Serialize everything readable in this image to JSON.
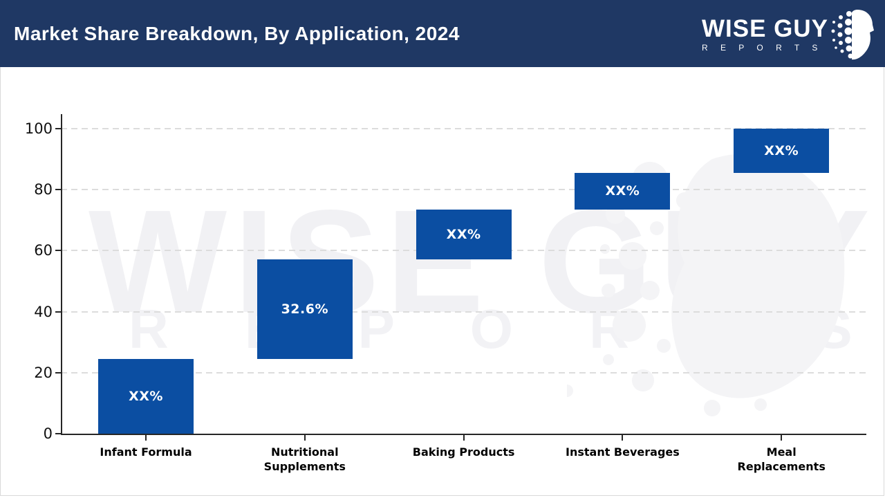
{
  "header": {
    "title": "Market Share Breakdown, By Application, 2024",
    "logo": {
      "line1": "WISE GUY",
      "line2": "R E P O R T S"
    }
  },
  "watermark": {
    "line1": "WISE GUY",
    "line2": "R E P O R T S"
  },
  "colors": {
    "header_bg": "#1f3864",
    "bar": "#0b4ea2",
    "bar_label": "#ffffff",
    "gridline": "#dcdcdc",
    "axis": "#262626",
    "watermark": "#f1f1f4",
    "frame_border": "#d9d9d9"
  },
  "chart_data": {
    "type": "bar",
    "subtype": "floating-waterfall",
    "title": "Market Share Breakdown, By Application, 2024",
    "xlabel": "",
    "ylabel": "",
    "ylim": [
      0,
      104
    ],
    "y_ticks": [
      0,
      20,
      40,
      60,
      80,
      100
    ],
    "grid": "horizontal-dashed",
    "legend": "none",
    "categories": [
      "Infant Formula",
      "Nutritional Supplements",
      "Baking Products",
      "Instant Beverages",
      "Meal Replacements"
    ],
    "segments": [
      {
        "category": "Infant Formula",
        "start": 0,
        "end": 24.5,
        "label": "XX%"
      },
      {
        "category": "Nutritional Supplements",
        "start": 24.5,
        "end": 57.1,
        "label": "32.6%",
        "value": 32.6
      },
      {
        "category": "Baking Products",
        "start": 57.1,
        "end": 73.5,
        "label": "XX%"
      },
      {
        "category": "Instant Beverages",
        "start": 73.5,
        "end": 85.5,
        "label": "XX%"
      },
      {
        "category": "Meal Replacements",
        "start": 85.5,
        "end": 100,
        "label": "XX%"
      }
    ]
  }
}
